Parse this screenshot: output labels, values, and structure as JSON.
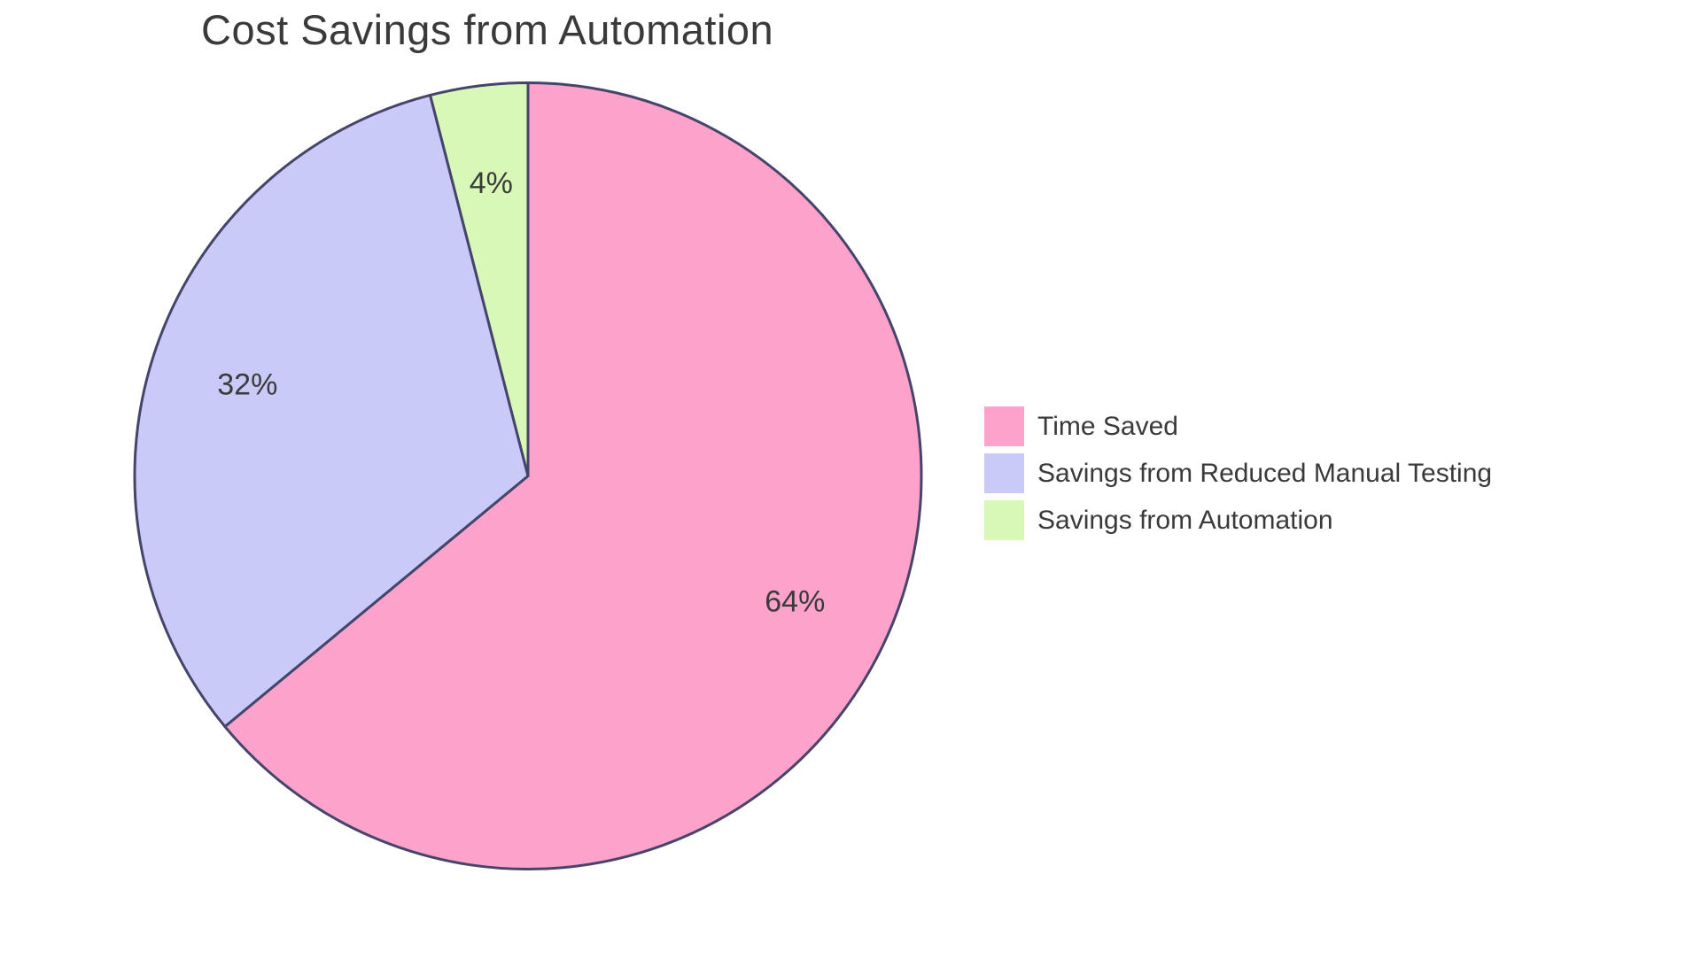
{
  "page": {
    "background": "#ffffff"
  },
  "chart_data": {
    "type": "pie",
    "title": "Cost Savings from Automation",
    "categories": [
      "Time Saved",
      "Savings from Reduced Manual Testing",
      "Savings from Automation"
    ],
    "values": [
      64,
      32,
      4
    ],
    "slice_labels": [
      "64%",
      "32%",
      "4%"
    ],
    "colors": [
      "#FCA2CB",
      "#C9CAF8",
      "#D8F8B7"
    ],
    "slice_border_color": "#45456B",
    "text_color": "#3A3A3A",
    "start_angle_deg": 0,
    "direction": "clockwise",
    "legend_position": "right",
    "grid": "off"
  }
}
